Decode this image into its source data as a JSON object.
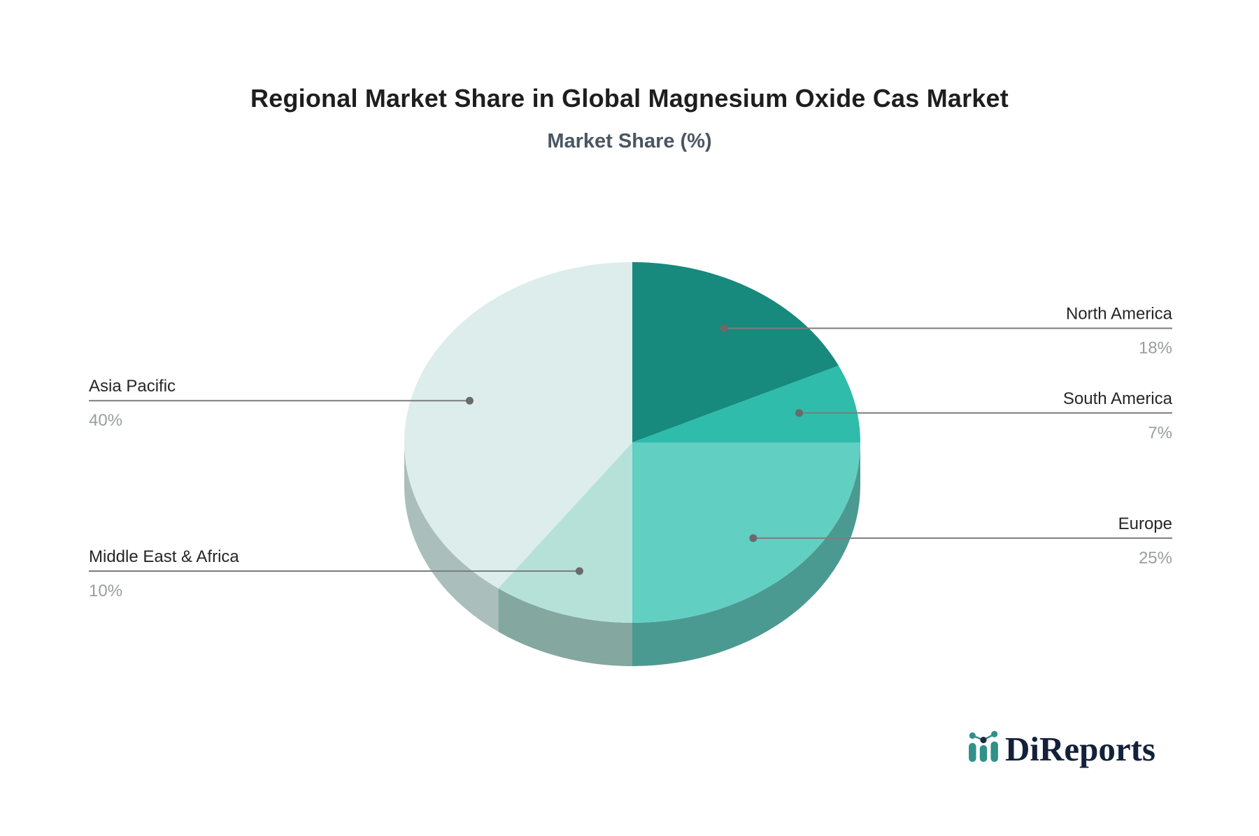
{
  "header": {
    "title": "Regional Market Share in Global Magnesium Oxide Cas Market",
    "subtitle": "Market Share (%)"
  },
  "chart_data": {
    "type": "pie",
    "title": "Regional Market Share in Global Magnesium Oxide Cas Market",
    "subtitle": "Market Share (%)",
    "unit": "%",
    "effect": "3d",
    "start_angle_deg": 0,
    "direction": "clockwise",
    "labels": [
      "North America",
      "South America",
      "Europe",
      "Middle East & Africa",
      "Asia Pacific"
    ],
    "values": [
      18,
      7,
      25,
      10,
      40
    ],
    "display_values": [
      "18%",
      "7%",
      "25%",
      "10%",
      "40%"
    ],
    "colors": [
      "#18897d",
      "#2fbcab",
      "#62cfc3",
      "#b5e1d9",
      "#dcedeb"
    ],
    "side_colors": [
      "#107064",
      "#27a294",
      "#4b9a91",
      "#84a7a0",
      "#aabebb"
    ],
    "label_sides": [
      "right",
      "right",
      "right",
      "left",
      "left"
    ],
    "style": {
      "label_color": "#262626",
      "value_color": "#9a9d9e",
      "leader_line_color": "#7d7d7d",
      "leader_dot_color": "#6a6a6a",
      "subtitle_color": "#4a5662"
    }
  },
  "branding": {
    "logo_text": "DiReports",
    "logo_icon": "bar-line-chart-icon",
    "logo_text_color": "#14213a",
    "logo_accent_color": "#2f9189",
    "logo_dark_color": "#1b2a44"
  }
}
